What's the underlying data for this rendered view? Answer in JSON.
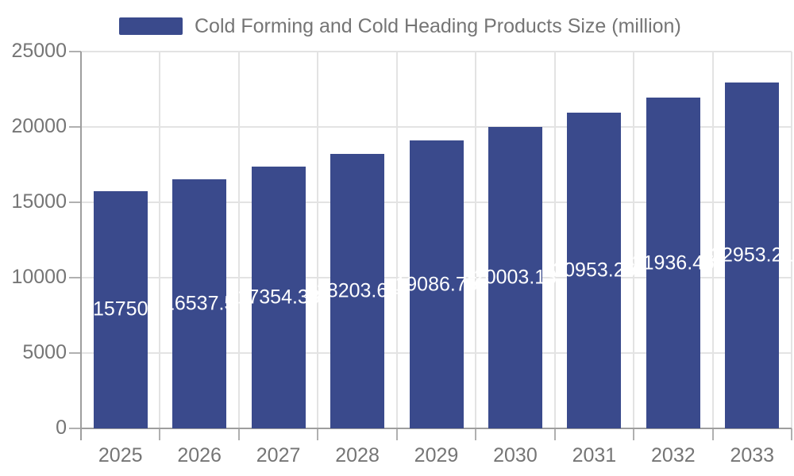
{
  "legend": {
    "label": "Cold Forming and Cold Heading Products Size (million)"
  },
  "colors": {
    "bar": "#3A4A8C",
    "axis": "#9E9E9E",
    "tick": "#B0B0B0",
    "grid": "#E3E3E3",
    "text": "#757575",
    "value_label": "#FFFFFF",
    "background": "#FFFFFF"
  },
  "chart_data": {
    "type": "bar",
    "title": "Cold Forming and Cold Heading Products Size (million)",
    "categories": [
      "2025",
      "2026",
      "2027",
      "2028",
      "2029",
      "2030",
      "2031",
      "2032",
      "2033"
    ],
    "values": [
      15750,
      16537.5,
      17354.38,
      18203.64,
      19086.75,
      20003.13,
      20953.26,
      21936.45,
      22953.21
    ],
    "series_name": "Cold Forming and Cold Heading Products Size (million)",
    "xlabel": "",
    "ylabel": "",
    "ylim": [
      0,
      25000
    ],
    "y_ticks": [
      0,
      5000,
      10000,
      15000,
      20000,
      25000
    ],
    "grid": "both",
    "legend_position": "top-center",
    "value_label_position": "inside-center"
  }
}
